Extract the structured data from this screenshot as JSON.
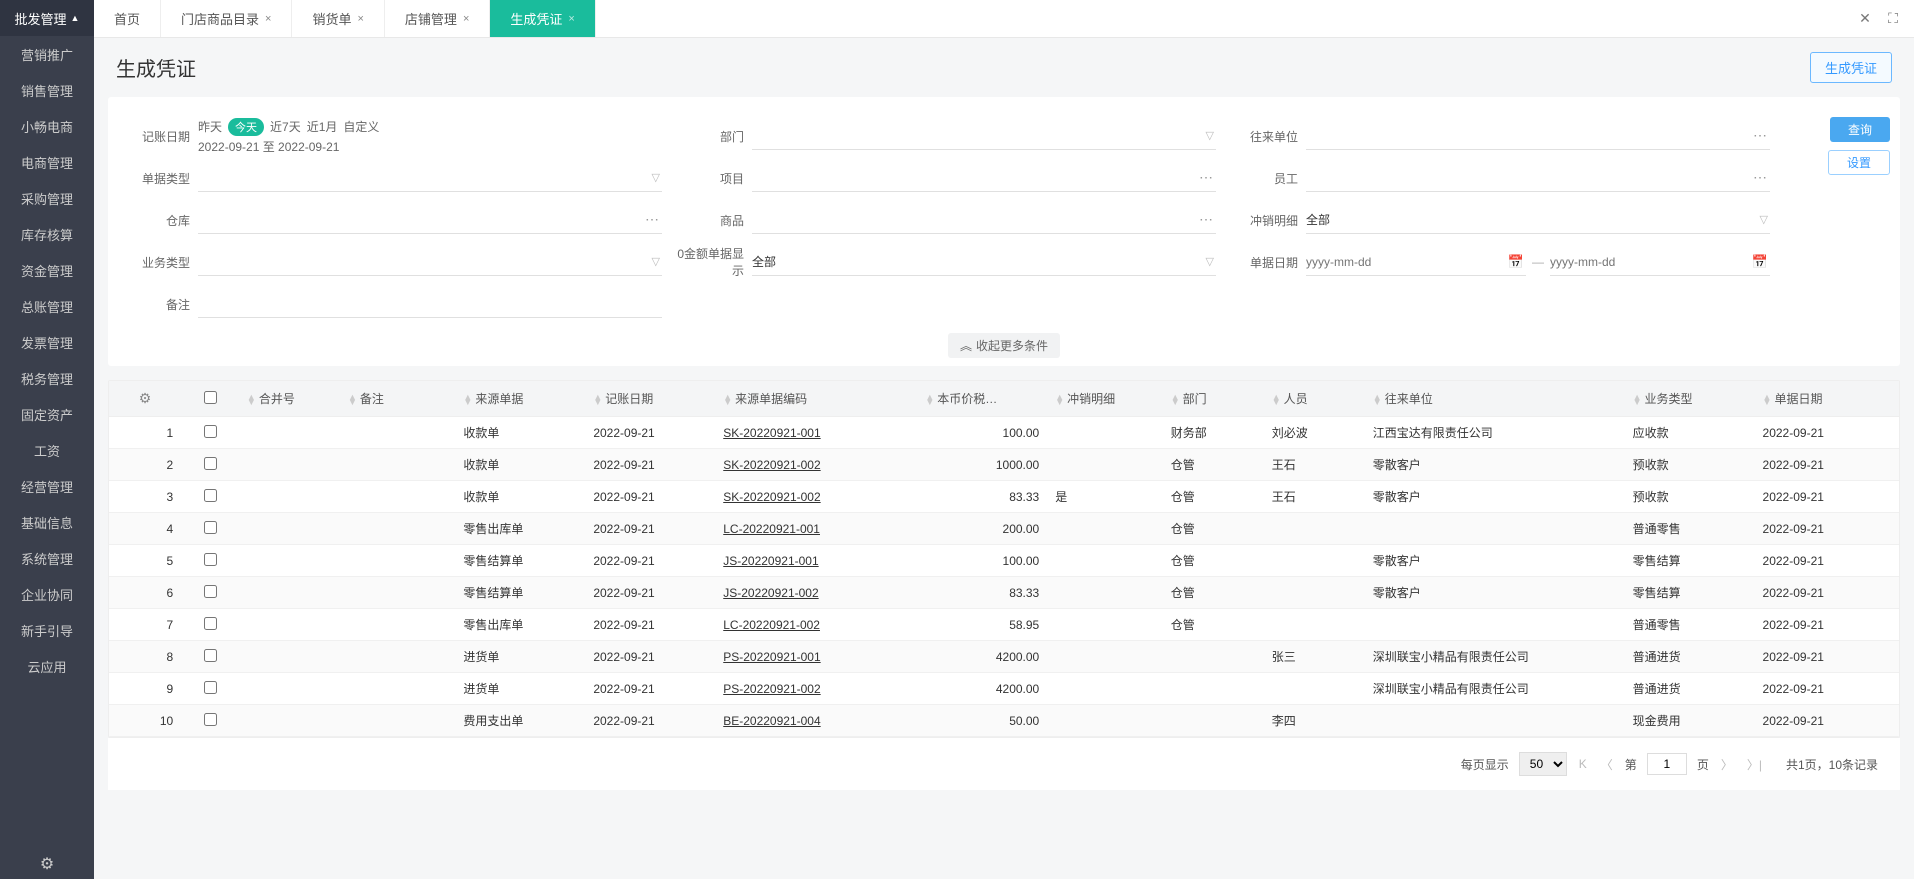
{
  "sidebar": {
    "head": "批发管理",
    "items": [
      "营销推广",
      "销售管理",
      "小畅电商",
      "电商管理",
      "采购管理",
      "库存核算",
      "资金管理",
      "总账管理",
      "发票管理",
      "税务管理",
      "固定资产",
      "工资",
      "经营管理",
      "基础信息",
      "系统管理",
      "企业协同",
      "新手引导",
      "云应用"
    ]
  },
  "tabs": [
    {
      "label": "首页",
      "closable": false,
      "active": false
    },
    {
      "label": "门店商品目录",
      "closable": true,
      "active": false
    },
    {
      "label": "销货单",
      "closable": true,
      "active": false
    },
    {
      "label": "店铺管理",
      "closable": true,
      "active": false
    },
    {
      "label": "生成凭证",
      "closable": true,
      "active": true
    }
  ],
  "page": {
    "title": "生成凭证",
    "gen_btn": "生成凭证"
  },
  "filters": {
    "record_date_label": "记账日期",
    "date_opts": [
      "昨天",
      "今天",
      "近7天",
      "近1月",
      "自定义"
    ],
    "date_active_idx": 1,
    "date_range_text": "2022-09-21 至 2022-09-21",
    "dept_label": "部门",
    "partner_label": "往来单位",
    "doc_type_label": "单据类型",
    "project_label": "项目",
    "employee_label": "员工",
    "warehouse_label": "仓库",
    "goods_label": "商品",
    "offset_label": "冲销明细",
    "offset_value": "全部",
    "biz_type_label": "业务类型",
    "zero_label": "0金额单据显示",
    "zero_value": "全部",
    "doc_date_label": "单据日期",
    "date_placeholder": "yyyy-mm-dd",
    "remark_label": "备注",
    "query_btn": "查询",
    "config_btn": "设置",
    "collapse": "收起更多条件"
  },
  "table": {
    "cols": [
      "",
      "",
      "合并号",
      "备注",
      "来源单据",
      "记账日期",
      "来源单据编码",
      "本币价税…",
      "冲销明细",
      "部门",
      "人员",
      "往来单位",
      "业务类型",
      "单据日期"
    ],
    "widths": [
      50,
      40,
      70,
      80,
      90,
      90,
      140,
      90,
      80,
      70,
      70,
      180,
      90,
      100
    ],
    "rows": [
      {
        "n": 1,
        "src": "收款单",
        "rdate": "2022-09-21",
        "code": "SK-20220921-001",
        "amt": "100.00",
        "off": "",
        "dept": "财务部",
        "person": "刘必波",
        "partner": "江西宝达有限责任公司",
        "btype": "应收款",
        "ddate": "2022-09-21"
      },
      {
        "n": 2,
        "src": "收款单",
        "rdate": "2022-09-21",
        "code": "SK-20220921-002",
        "amt": "1000.00",
        "off": "",
        "dept": "仓管",
        "person": "王石",
        "partner": "零散客户",
        "btype": "预收款",
        "ddate": "2022-09-21"
      },
      {
        "n": 3,
        "src": "收款单",
        "rdate": "2022-09-21",
        "code": "SK-20220921-002",
        "amt": "83.33",
        "off": "是",
        "dept": "仓管",
        "person": "王石",
        "partner": "零散客户",
        "btype": "预收款",
        "ddate": "2022-09-21"
      },
      {
        "n": 4,
        "src": "零售出库单",
        "rdate": "2022-09-21",
        "code": "LC-20220921-001",
        "amt": "200.00",
        "off": "",
        "dept": "仓管",
        "person": "",
        "partner": "",
        "btype": "普通零售",
        "ddate": "2022-09-21"
      },
      {
        "n": 5,
        "src": "零售结算单",
        "rdate": "2022-09-21",
        "code": "JS-20220921-001",
        "amt": "100.00",
        "off": "",
        "dept": "仓管",
        "person": "",
        "partner": "零散客户",
        "btype": "零售结算",
        "ddate": "2022-09-21"
      },
      {
        "n": 6,
        "src": "零售结算单",
        "rdate": "2022-09-21",
        "code": "JS-20220921-002",
        "amt": "83.33",
        "off": "",
        "dept": "仓管",
        "person": "",
        "partner": "零散客户",
        "btype": "零售结算",
        "ddate": "2022-09-21"
      },
      {
        "n": 7,
        "src": "零售出库单",
        "rdate": "2022-09-21",
        "code": "LC-20220921-002",
        "amt": "58.95",
        "off": "",
        "dept": "仓管",
        "person": "",
        "partner": "",
        "btype": "普通零售",
        "ddate": "2022-09-21"
      },
      {
        "n": 8,
        "src": "进货单",
        "rdate": "2022-09-21",
        "code": "PS-20220921-001",
        "amt": "4200.00",
        "off": "",
        "dept": "",
        "person": "张三",
        "partner": "深圳联宝小精品有限责任公司",
        "btype": "普通进货",
        "ddate": "2022-09-21"
      },
      {
        "n": 9,
        "src": "进货单",
        "rdate": "2022-09-21",
        "code": "PS-20220921-002",
        "amt": "4200.00",
        "off": "",
        "dept": "",
        "person": "",
        "partner": "深圳联宝小精品有限责任公司",
        "btype": "普通进货",
        "ddate": "2022-09-21"
      },
      {
        "n": 10,
        "src": "费用支出单",
        "rdate": "2022-09-21",
        "code": "BE-20220921-004",
        "amt": "50.00",
        "off": "",
        "dept": "",
        "person": "李四",
        "partner": "",
        "btype": "现金费用",
        "ddate": "2022-09-21"
      }
    ]
  },
  "pager": {
    "per_page_label": "每页显示",
    "per_page": "50",
    "page_prefix": "第",
    "page": "1",
    "page_suffix": "页",
    "summary": "共1页，10条记录"
  }
}
